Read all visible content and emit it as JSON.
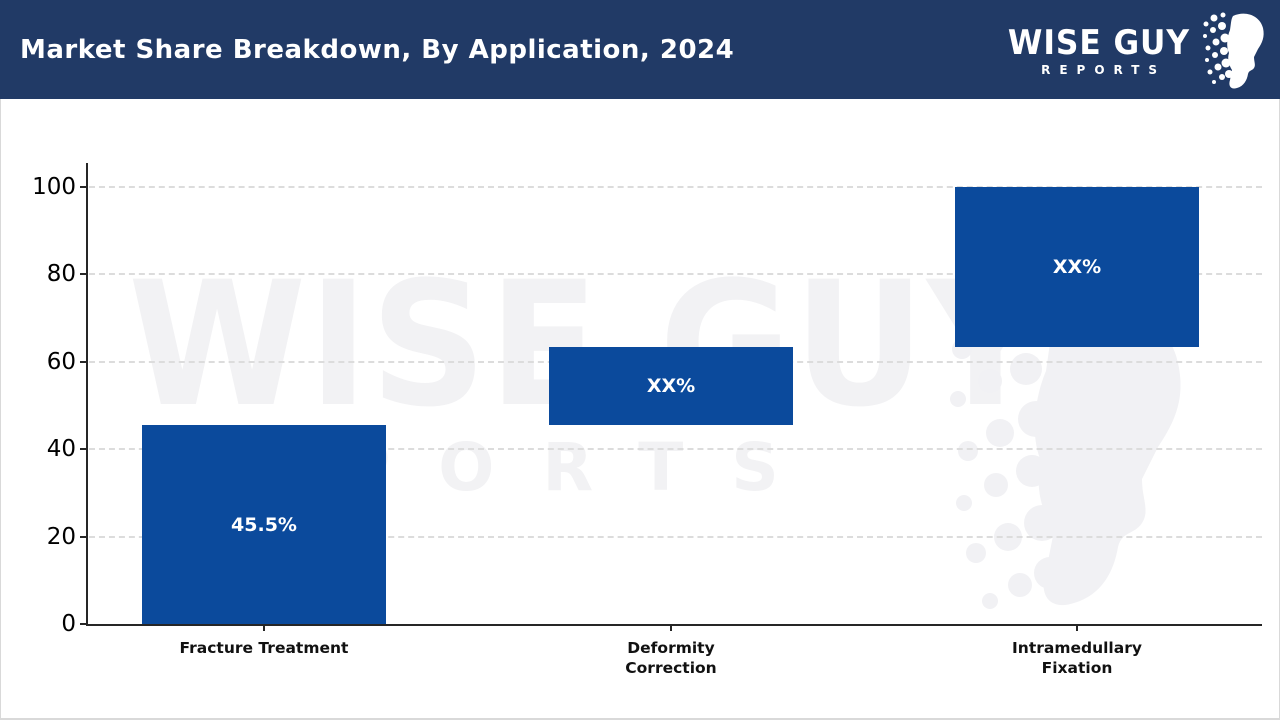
{
  "header": {
    "title": "Market Share Breakdown, By Application, 2024",
    "bg_color": "#213a66",
    "logo_line1": "WISE GUY",
    "logo_line2": "REPORTS"
  },
  "watermark": {
    "line1": "WISE GUY",
    "line2": "REPORTS"
  },
  "chart_data": {
    "type": "bar",
    "subtype": "stacked-waterfall",
    "title": "Market Share Breakdown, By Application, 2024",
    "categories": [
      [
        "Fracture Treatment"
      ],
      [
        "Deformity",
        "Correction"
      ],
      [
        "Intramedullary",
        "Fixation"
      ]
    ],
    "segments": [
      {
        "category": "Fracture Treatment",
        "start": 0,
        "end": 45.5,
        "label": "45.5%"
      },
      {
        "category": "Deformity Correction",
        "start": 45.5,
        "end": 63.5,
        "label": "XX%"
      },
      {
        "category": "Intramedullary Fixation",
        "start": 63.5,
        "end": 100,
        "label": "XX%"
      }
    ],
    "xlabel": "",
    "ylabel": "",
    "yticks": [
      0,
      20,
      40,
      60,
      80,
      100
    ],
    "ylim": [
      0,
      100
    ],
    "grid": "horizontal-dashed",
    "legend": "none",
    "bar_color": "#0b4a9c",
    "bar_label_color": "#ffffff",
    "grid_color": "#dcdcdc",
    "axis_color": "#262626"
  }
}
